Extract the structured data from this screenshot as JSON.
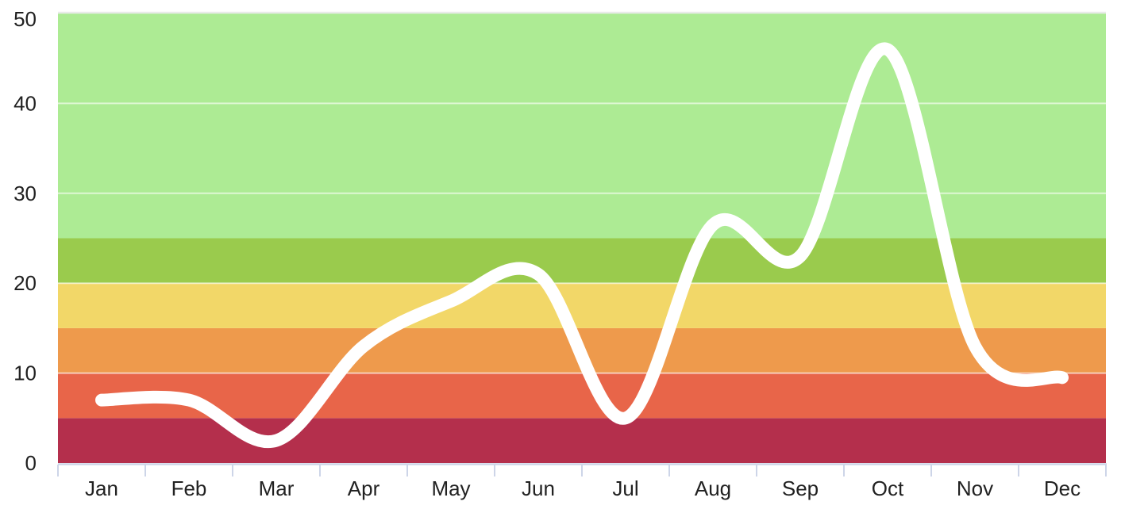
{
  "chart_data": {
    "type": "line",
    "title": "",
    "xlabel": "",
    "ylabel": "",
    "categories": [
      "Jan",
      "Feb",
      "Mar",
      "Apr",
      "May",
      "Jun",
      "Jul",
      "Aug",
      "Sep",
      "Oct",
      "Nov",
      "Dec"
    ],
    "series": [
      {
        "name": "monthly-values",
        "color": "#FFFFFF",
        "stroke_width": 16,
        "smoothing": "catmull-rom",
        "values": [
          7,
          7,
          2.5,
          13,
          18,
          21,
          5,
          26.5,
          23,
          46,
          13,
          9.5
        ]
      }
    ],
    "ylim": [
      0,
      50
    ],
    "y_ticks": [
      0,
      10,
      20,
      30,
      40,
      50
    ],
    "legend": "none",
    "grid": {
      "horizontal_every": 10,
      "color": "rgba(255,255,255,0.6)",
      "top_line_color": "#E9EBE9"
    },
    "background_bands": [
      {
        "from": 0,
        "to": 5,
        "color": "#B42F4C",
        "name": "band-crimson"
      },
      {
        "from": 5,
        "to": 10,
        "color": "#E86549",
        "name": "band-tomato"
      },
      {
        "from": 10,
        "to": 15,
        "color": "#EE9A4C",
        "name": "band-orange"
      },
      {
        "from": 15,
        "to": 20,
        "color": "#F2D768",
        "name": "band-yellow"
      },
      {
        "from": 20,
        "to": 25,
        "color": "#9ACB4D",
        "name": "band-olive-green"
      },
      {
        "from": 25,
        "to": 50,
        "color": "#ADEB94",
        "name": "band-light-green"
      }
    ],
    "axis": {
      "line_color": "#CDD5E8",
      "tick_color": "#CDD5E8",
      "label_color": "#212121"
    }
  }
}
